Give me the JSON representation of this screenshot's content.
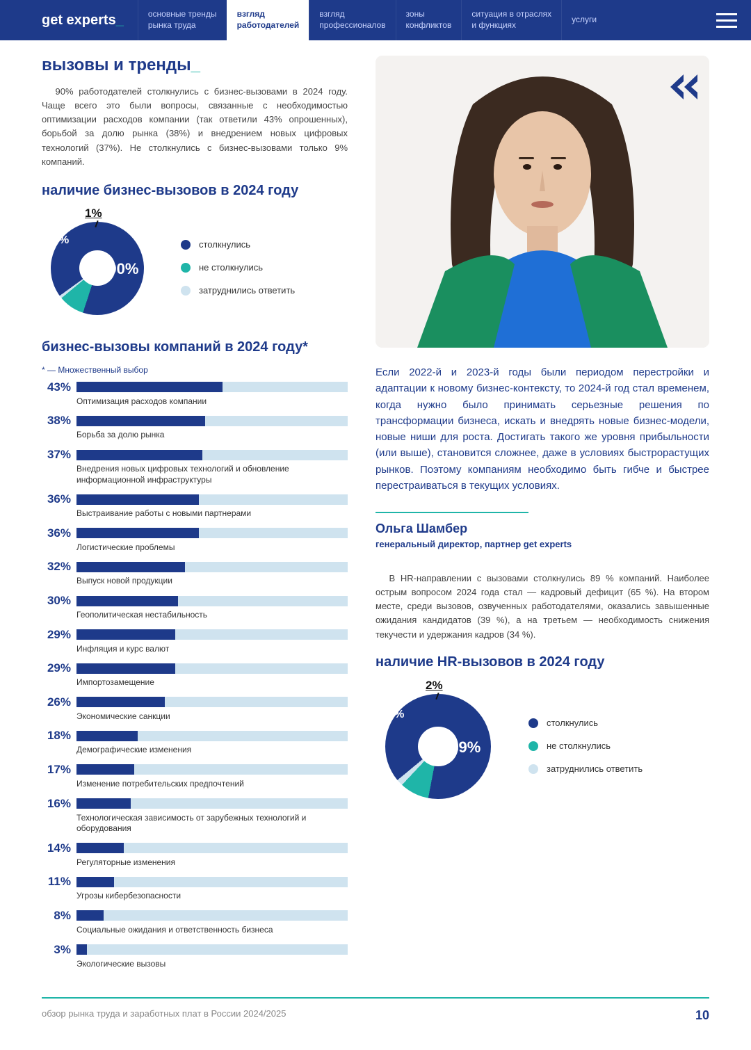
{
  "nav": {
    "logo": "get experts",
    "items": [
      "основные тренды\nрынка труда",
      "взгляд\nработодателей",
      "взгляд\nпрофессионалов",
      "зоны\nконфликтов",
      "ситуация в отраслях\nи функциях",
      "услуги"
    ],
    "activeIndex": 1
  },
  "left": {
    "title": "вызовы и тренды",
    "intro": "90% работодателей столкнулись с бизнес-вызовами в 2024 году. Чаще всего это были вопросы, связанные с необходимостью оптимизации расходов компании (так ответили 43% опрошенных), борьбой за долю рынка (38%) и внедрением новых цифровых технологий (37%). Не столкнулись с бизнес-вызовами только 9% компаний.",
    "donutTitle": "наличие бизнес-вызовов в 2024 году",
    "donut1": {
      "slices": [
        {
          "label": "столкнулись",
          "value": 90,
          "color": "#1e3a8a"
        },
        {
          "label": "не столкнулись",
          "value": 9,
          "color": "#1fb5a8"
        },
        {
          "label": "затруднились ответить",
          "value": 1,
          "color": "#cfe3ef"
        }
      ]
    },
    "barsTitle": "бизнес-вызовы компаний в 2024 году*",
    "barsNote": "* — Множественный выбор",
    "barMax": 80,
    "bars": [
      {
        "pct": 43,
        "label": "Оптимизация расходов компании"
      },
      {
        "pct": 38,
        "label": "Борьба за долю рынка"
      },
      {
        "pct": 37,
        "label": "Внедрения новых цифровых технологий и обновление информационной инфраструктуры"
      },
      {
        "pct": 36,
        "label": "Выстраивание работы с новыми партнерами"
      },
      {
        "pct": 36,
        "label": "Логистические проблемы"
      },
      {
        "pct": 32,
        "label": "Выпуск новой продукции"
      },
      {
        "pct": 30,
        "label": "Геополитическая нестабильность"
      },
      {
        "pct": 29,
        "label": "Инфляция и курс валют"
      },
      {
        "pct": 29,
        "label": "Импортозамещение"
      },
      {
        "pct": 26,
        "label": "Экономические санкции"
      },
      {
        "pct": 18,
        "label": "Демографические изменения"
      },
      {
        "pct": 17,
        "label": "Изменение потребительских предпочтений"
      },
      {
        "pct": 16,
        "label": "Технологическая зависимость от зарубежных технологий и оборудования"
      },
      {
        "pct": 14,
        "label": "Регуляторные изменения"
      },
      {
        "pct": 11,
        "label": "Угрозы кибербезопасности"
      },
      {
        "pct": 8,
        "label": "Социальные ожидания и ответственность бизнеса"
      },
      {
        "pct": 3,
        "label": "Экологические вызовы"
      }
    ]
  },
  "right": {
    "quote": "Если 2022-й и 2023-й годы были периодом перестройки и адаптации к новому бизнес-контексту, то 2024-й год стал временем, когда нужно было принимать серьезные решения по трансформации бизнеса, искать и внедрять новые бизнес-модели, новые ниши для роста. Достигать такого же уровня прибыльности (или выше), становится сложнее, даже в условиях быстрорастущих рынков.  Поэтому компаниям необходимо быть гибче и быстрее перестраиваться в текущих условиях.",
    "authorName": "Ольга Шамбер",
    "authorTitle": "генеральный директор, партнер get experts",
    "body": "В HR-направлении с вызовами столкнулись 89 % компаний. Наиболее острым вопросом 2024 года стал — кадровый дефицит (65 %). На втором месте, среди вызовов, озвученных работодателями, оказались завышенные ожидания кандидатов (39 %), а на третьем — необходимость снижения текучести и удержания кадров (34 %).",
    "donutTitle": "наличие HR-вызовов в 2024 году",
    "donut2": {
      "slices": [
        {
          "label": "столкнулись",
          "value": 89,
          "color": "#1e3a8a"
        },
        {
          "label": "не столкнулись",
          "value": 9,
          "color": "#1fb5a8"
        },
        {
          "label": "затруднились ответить",
          "value": 2,
          "color": "#cfe3ef"
        }
      ]
    }
  },
  "footer": {
    "text": "обзор рынка труда и заработных плат в России 2024/2025",
    "page": "10"
  },
  "colors": {
    "primary": "#1e3a8a",
    "accent": "#1fb5a8",
    "light": "#cfe3ef"
  }
}
